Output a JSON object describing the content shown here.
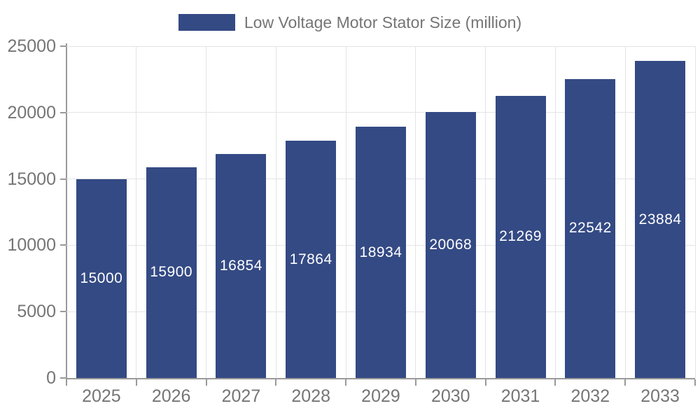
{
  "chart_data": {
    "type": "bar",
    "title": "",
    "legend": "Low Voltage Motor Stator Size (million)",
    "legend_position": "top-center",
    "categories": [
      "2025",
      "2026",
      "2027",
      "2028",
      "2029",
      "2030",
      "2031",
      "2032",
      "2033"
    ],
    "values": [
      15000,
      15900,
      16854,
      17864,
      18934,
      20068,
      21269,
      22542,
      23884
    ],
    "xlabel": "",
    "ylabel": "",
    "ylim": [
      0,
      25000
    ],
    "yticks": [
      0,
      5000,
      10000,
      15000,
      20000,
      25000
    ],
    "grid": true,
    "bar_color": "#344a84",
    "bar_label_color": "#ffffff",
    "axis_text_color": "#757575",
    "grid_color": "#e4e4e7",
    "axis_line_color": "#9a9a9a",
    "background_color": "#ffffff"
  }
}
